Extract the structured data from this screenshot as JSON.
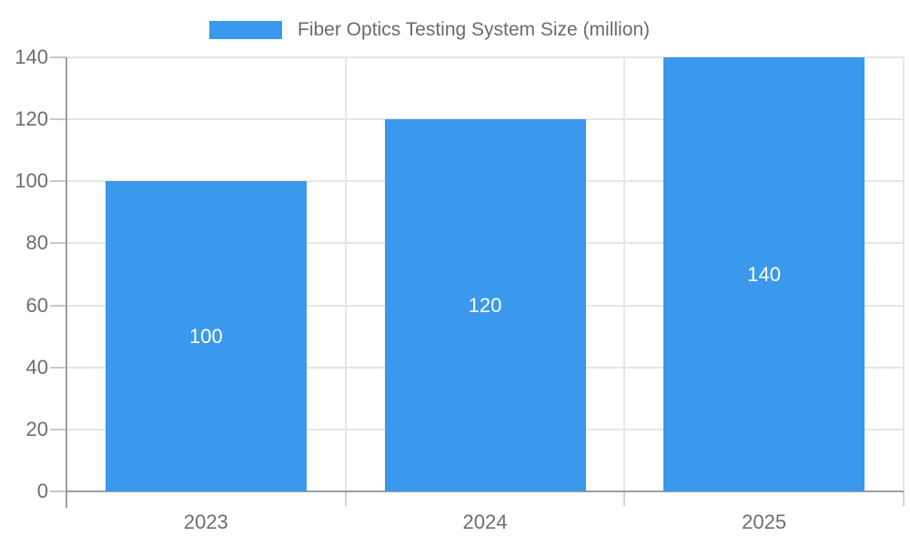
{
  "chart_data": {
    "type": "bar",
    "title": "Fiber Optics Testing System Size (million)",
    "categories": [
      "2023",
      "2024",
      "2025"
    ],
    "series": [
      {
        "name": "Fiber Optics Testing System Size (million)",
        "values": [
          100,
          120,
          140
        ],
        "color": "#3a99ec"
      }
    ],
    "data_labels": [
      "100",
      "120",
      "140"
    ],
    "xlabel": "",
    "ylabel": "",
    "ylim": [
      0,
      140
    ],
    "yticks": [
      0,
      20,
      40,
      60,
      80,
      100,
      120,
      140
    ],
    "grid": true,
    "legend_position": "top"
  },
  "legend": {
    "label": "Fiber Optics Testing System Size (million)",
    "swatch_color": "#3a99ec"
  },
  "colors": {
    "bar": "#3a99ec",
    "axis": "#9e9e9e",
    "gridline": "#e6e6e6",
    "tick": "#c9c9c9",
    "text": "#6e6e6e",
    "data_label": "#ffffff",
    "background": "#ffffff"
  }
}
